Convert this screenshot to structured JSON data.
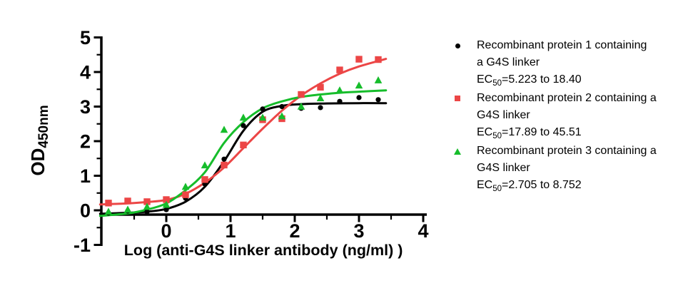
{
  "figure": {
    "background": "#ffffff"
  },
  "chart_data": {
    "type": "scatter",
    "title": "",
    "xlabel": "Log (anti-G4S linker antibody (ng/ml) )",
    "ylabel_prefix": "OD",
    "ylabel_sub": "450nm",
    "xlim": [
      -1.03,
      4.06
    ],
    "ylim": [
      -1,
      5
    ],
    "grid": false,
    "legend_position": "right",
    "xticks": [
      {
        "value": 0,
        "label": "0"
      },
      {
        "value": 1,
        "label": "1"
      },
      {
        "value": 2,
        "label": "2"
      },
      {
        "value": 3,
        "label": "3"
      },
      {
        "value": 4,
        "label": "4"
      }
    ],
    "xminorticks": [
      -0.5,
      0.5,
      1.5,
      2.5,
      3.5
    ],
    "yticks": [
      {
        "value": -1,
        "label": "-1"
      },
      {
        "value": 0,
        "label": "0"
      },
      {
        "value": 1,
        "label": "1"
      },
      {
        "value": 2,
        "label": "2"
      },
      {
        "value": 3,
        "label": "3"
      },
      {
        "value": 4,
        "label": "4"
      },
      {
        "value": 5,
        "label": "5"
      }
    ],
    "yminorticks": [
      -0.5,
      0.5,
      1.5,
      2.5,
      3.5,
      4.5
    ],
    "x": [
      -0.9,
      -0.6,
      -0.3,
      0.0,
      0.3,
      0.6,
      0.9,
      1.2,
      1.5,
      1.8,
      2.1,
      2.4,
      2.7,
      3.0,
      3.3
    ],
    "series": [
      {
        "id": "protein1",
        "legend_lines": [
          "Recombinant protein 1 containing",
          "a G4S linker"
        ],
        "ec50_prefix": "EC",
        "ec50_sub": "50",
        "ec50_text": "=5.223 to 18.40",
        "color": "#000000",
        "marker": "circle",
        "values": [
          -0.08,
          -0.02,
          -0.04,
          0.02,
          0.35,
          0.76,
          1.48,
          2.45,
          2.93,
          3.0,
          2.95,
          2.97,
          3.15,
          3.26,
          3.2
        ],
        "fit_curve": {
          "x": [
            -1.03,
            -0.6,
            -0.3,
            0.0,
            0.3,
            0.6,
            0.9,
            1.2,
            1.5,
            1.8,
            2.1,
            2.5,
            3.0,
            3.42
          ],
          "y": [
            -0.1,
            -0.07,
            -0.04,
            0.04,
            0.25,
            0.68,
            1.42,
            2.3,
            2.85,
            3.02,
            3.07,
            3.09,
            3.1,
            3.1
          ]
        }
      },
      {
        "id": "protein2",
        "legend_lines": [
          "Recombinant protein 2 containing a",
          "G4S linker"
        ],
        "ec50_prefix": "EC",
        "ec50_sub": "50",
        "ec50_text": "=17.89 to 45.51",
        "color": "#ec4646",
        "marker": "square",
        "values": [
          0.21,
          0.27,
          0.25,
          0.31,
          0.45,
          0.89,
          1.31,
          1.89,
          2.62,
          2.65,
          3.35,
          3.56,
          4.06,
          4.37,
          4.36
        ],
        "fit_curve": {
          "x": [
            -1.03,
            -0.6,
            -0.3,
            0.0,
            0.3,
            0.6,
            0.9,
            1.2,
            1.5,
            1.8,
            2.1,
            2.4,
            2.7,
            3.0,
            3.42
          ],
          "y": [
            0.17,
            0.2,
            0.24,
            0.3,
            0.48,
            0.8,
            1.24,
            1.8,
            2.36,
            2.88,
            3.32,
            3.67,
            3.95,
            4.16,
            4.38
          ]
        }
      },
      {
        "id": "protein3",
        "legend_lines": [
          "Recombinant protein 3 containing a",
          "G4S linker"
        ],
        "ec50_prefix": "EC",
        "ec50_sub": "50",
        "ec50_text": "=2.705 to 8.752",
        "color": "#16bd2b",
        "marker": "triangle",
        "values": [
          -0.04,
          0.02,
          0.1,
          0.16,
          0.68,
          1.3,
          2.33,
          2.68,
          2.68,
          2.72,
          3.0,
          3.24,
          3.47,
          3.61,
          3.76
        ],
        "fit_curve": {
          "x": [
            -1.03,
            -0.6,
            -0.3,
            0.0,
            0.3,
            0.6,
            0.9,
            1.2,
            1.5,
            1.8,
            2.1,
            2.4,
            2.7,
            3.0,
            3.42
          ],
          "y": [
            -0.16,
            -0.09,
            0.02,
            0.2,
            0.58,
            1.1,
            1.95,
            2.55,
            2.95,
            3.15,
            3.28,
            3.35,
            3.4,
            3.43,
            3.47
          ]
        }
      }
    ]
  }
}
